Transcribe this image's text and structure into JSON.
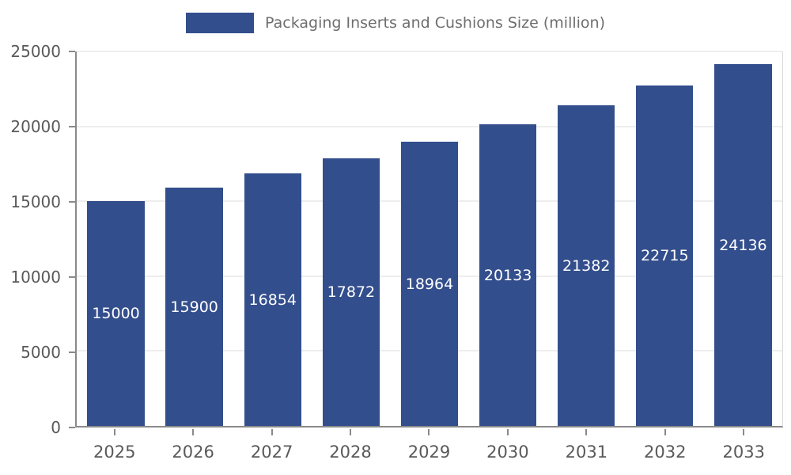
{
  "chart_data": {
    "type": "bar",
    "title": "Packaging Inserts and Cushions Size (million)",
    "categories": [
      "2025",
      "2026",
      "2027",
      "2028",
      "2029",
      "2030",
      "2031",
      "2032",
      "2033"
    ],
    "values": [
      15000,
      15900,
      16854,
      17872,
      18964,
      20133,
      21382,
      22715,
      24136
    ],
    "xlabel": "",
    "ylabel": "",
    "ylim": [
      0,
      25000
    ],
    "yticks": [
      0,
      5000,
      10000,
      15000,
      20000,
      25000
    ],
    "grid": true,
    "legend_position": "top",
    "bar_color": "#334e8c",
    "value_label_color": "#ffffff",
    "axis_text_color": "#595959",
    "legend_text_color": "#6e6e6e",
    "gridline_color": "#dcdcdc"
  }
}
